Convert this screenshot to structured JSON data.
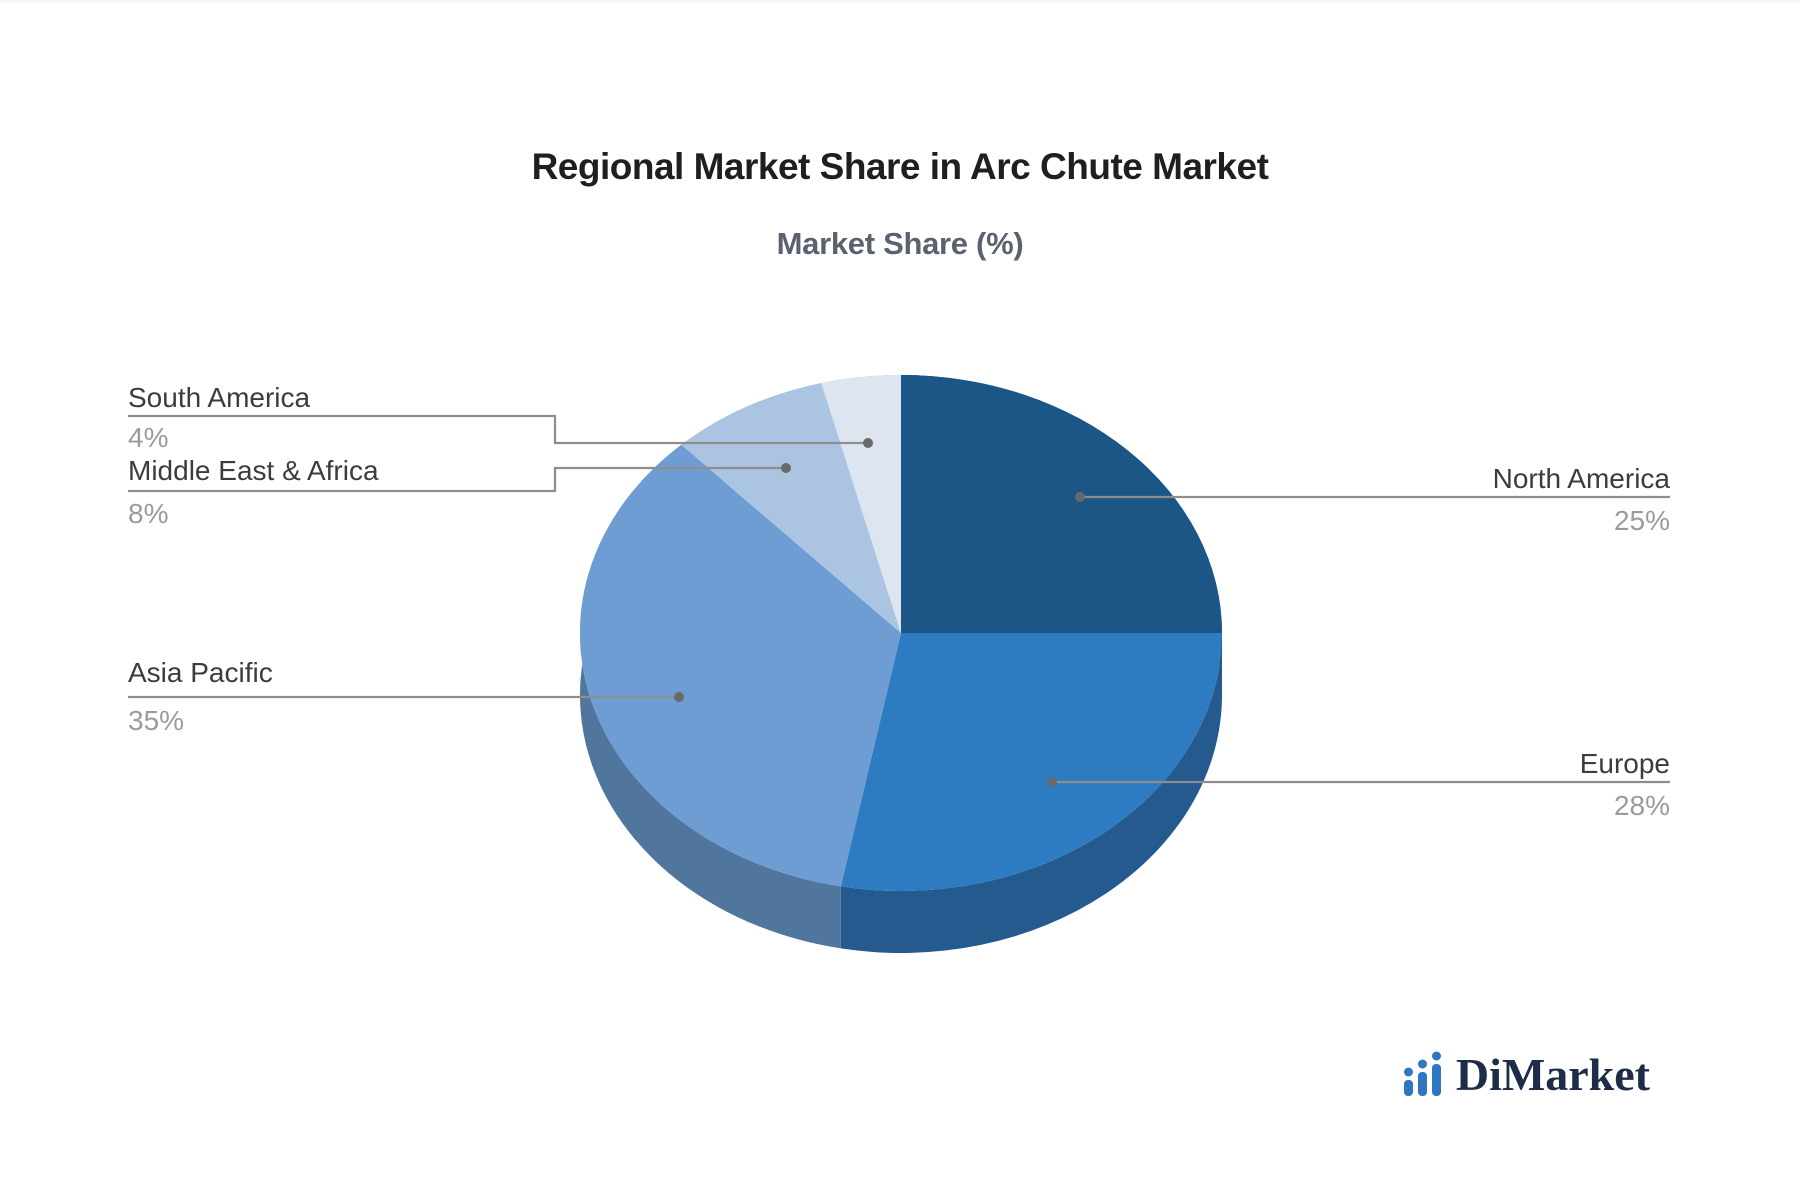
{
  "page": {
    "background": "#ffffff",
    "top_strip_color": "#f6f8fa"
  },
  "chart_data": {
    "type": "pie",
    "style": "3d-pie-with-callouts",
    "title": "Regional Market Share in Arc Chute Market",
    "subtitle": "Market Share (%)",
    "unit": "%",
    "total": 100,
    "legend_position": "none",
    "label_style": "callout-leader-lines",
    "slices": [
      {
        "label": "North America",
        "value": 25,
        "pct": "25%",
        "color": "#1B5687",
        "side_color": "#113E63",
        "label_side": "right"
      },
      {
        "label": "Europe",
        "value": 28,
        "pct": "28%",
        "color": "#2D7BC1",
        "side_color": "#245A8E",
        "label_side": "right"
      },
      {
        "label": "Asia Pacific",
        "value": 35,
        "pct": "35%",
        "color": "#6D9DD3",
        "side_color": "#51769E",
        "label_side": "left"
      },
      {
        "label": "Middle East & Africa",
        "value": 8,
        "pct": "8%",
        "color": "#AAC4E1",
        "side_color": "#7E94AF",
        "label_side": "left"
      },
      {
        "label": "South America",
        "value": 4,
        "pct": "4%",
        "color": "#DDE5F0",
        "side_color": "#A5AFC0",
        "label_side": "left"
      }
    ],
    "leader_line_color": "#8e8e8e",
    "leader_dot_color": "#696969"
  },
  "branding": {
    "name": "DiMarket",
    "icon": "bar-chart-logo-icon",
    "text_color": "#1d2c47",
    "icon_color": "#2F77C2"
  }
}
